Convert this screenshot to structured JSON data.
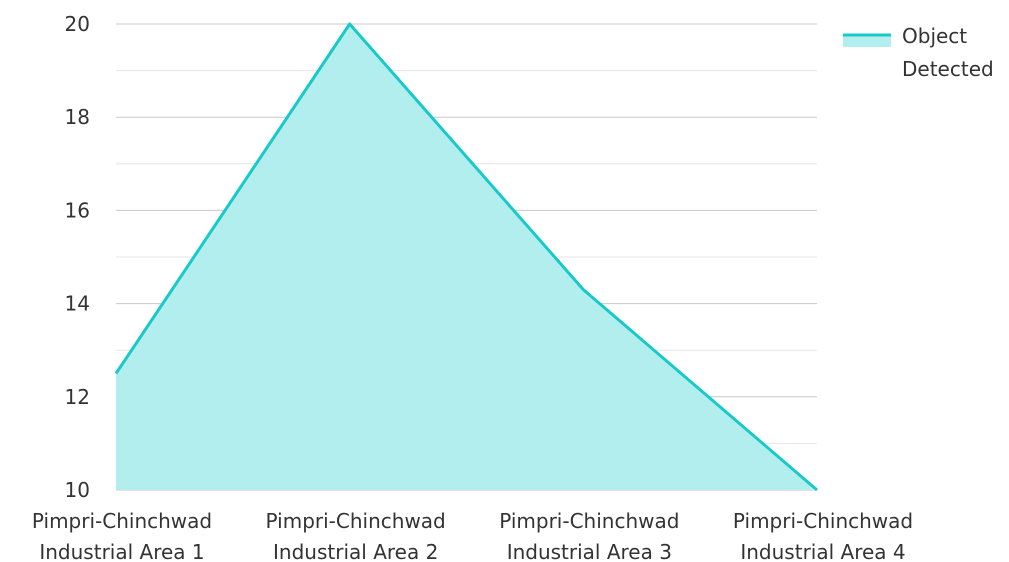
{
  "chart_data": {
    "type": "area",
    "categories": [
      [
        "Pimpri-Chinchwad",
        "Industrial Area 1"
      ],
      [
        "Pimpri-Chinchwad",
        "Industrial Area 2"
      ],
      [
        "Pimpri-Chinchwad",
        "Industrial Area 3"
      ],
      [
        "Pimpri-Chinchwad",
        "Industrial Area 4"
      ]
    ],
    "series": [
      {
        "name": "Object Detected",
        "values": [
          12.5,
          20,
          14.3,
          10
        ]
      }
    ],
    "ylim": [
      10,
      20
    ],
    "yticks": [
      10,
      12,
      14,
      16,
      18,
      20
    ],
    "minor_grid": true,
    "legend_position": "top-right",
    "legend_label_lines": [
      "Object",
      "Detected"
    ],
    "colors": {
      "line": "#19c9c9",
      "fill": "#b2eeee",
      "grid_major": "#c8c8c8",
      "grid_minor": "#e6e6e6"
    }
  }
}
